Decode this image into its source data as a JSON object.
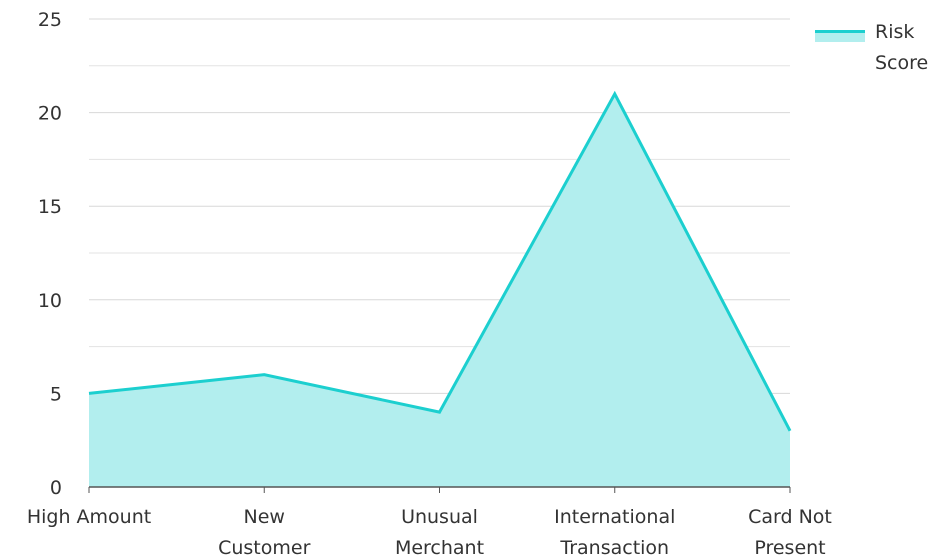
{
  "chart_data": {
    "type": "area",
    "categories": [
      [
        "High Amount"
      ],
      [
        "New",
        "Customer"
      ],
      [
        "Unusual",
        "Merchant"
      ],
      [
        "International",
        "Transaction"
      ],
      [
        "Card Not",
        "Present"
      ]
    ],
    "series": [
      {
        "name": [
          "Risk",
          "Score"
        ],
        "values": [
          5,
          6,
          4,
          21,
          3
        ],
        "line_color": "#1ccfcf",
        "fill_color": "#b2eeee"
      }
    ],
    "y_ticks": [
      "0",
      "5",
      "10",
      "15",
      "20",
      "25"
    ],
    "ylim": [
      0,
      25
    ],
    "grid": true,
    "grid_color": "#e3e3e3",
    "legend_position": "top-right"
  }
}
